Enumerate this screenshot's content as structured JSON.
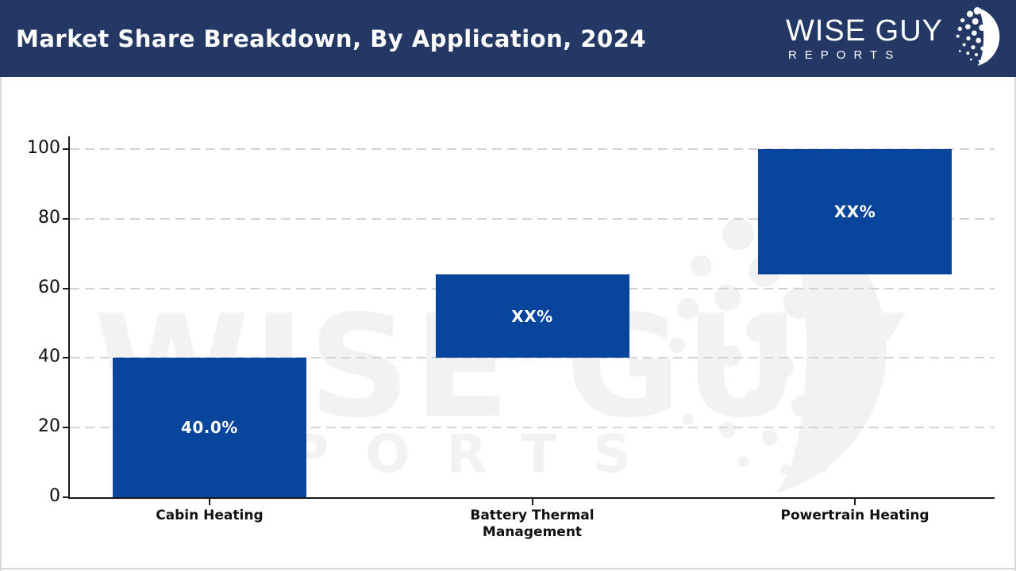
{
  "header": {
    "title": "Market Share Breakdown, By Application, 2024",
    "bg_color": "#233864",
    "logo": {
      "line1": "WISE GUY",
      "line2": "REPORTS"
    }
  },
  "watermark": {
    "line1": "WISE GUY",
    "line2": "REPORTS"
  },
  "chart_data": {
    "type": "bar",
    "subtype": "floating-waterfall",
    "title": "Market Share Breakdown, By Application, 2024",
    "categories": [
      "Cabin Heating",
      "Battery Thermal\nManagement",
      "Powertrain Heating"
    ],
    "bars": [
      {
        "category": "Cabin Heating",
        "start": 0,
        "end": 40,
        "label": "40.0%"
      },
      {
        "category": "Battery Thermal Management",
        "start": 40,
        "end": 64,
        "label": "XX%"
      },
      {
        "category": "Powertrain Heating",
        "start": 64,
        "end": 100,
        "label": "XX%"
      }
    ],
    "xlabel": "",
    "ylabel": "",
    "ylim": [
      0,
      100
    ],
    "yticks": [
      0,
      20,
      40,
      60,
      80,
      100
    ],
    "grid": "horizontal-dashed",
    "legend": "none",
    "bar_color": "#07459c",
    "bar_label_color": "#ffffff",
    "axis_color": "#1a1a1a",
    "gridline_color": "#d4d4d4"
  }
}
